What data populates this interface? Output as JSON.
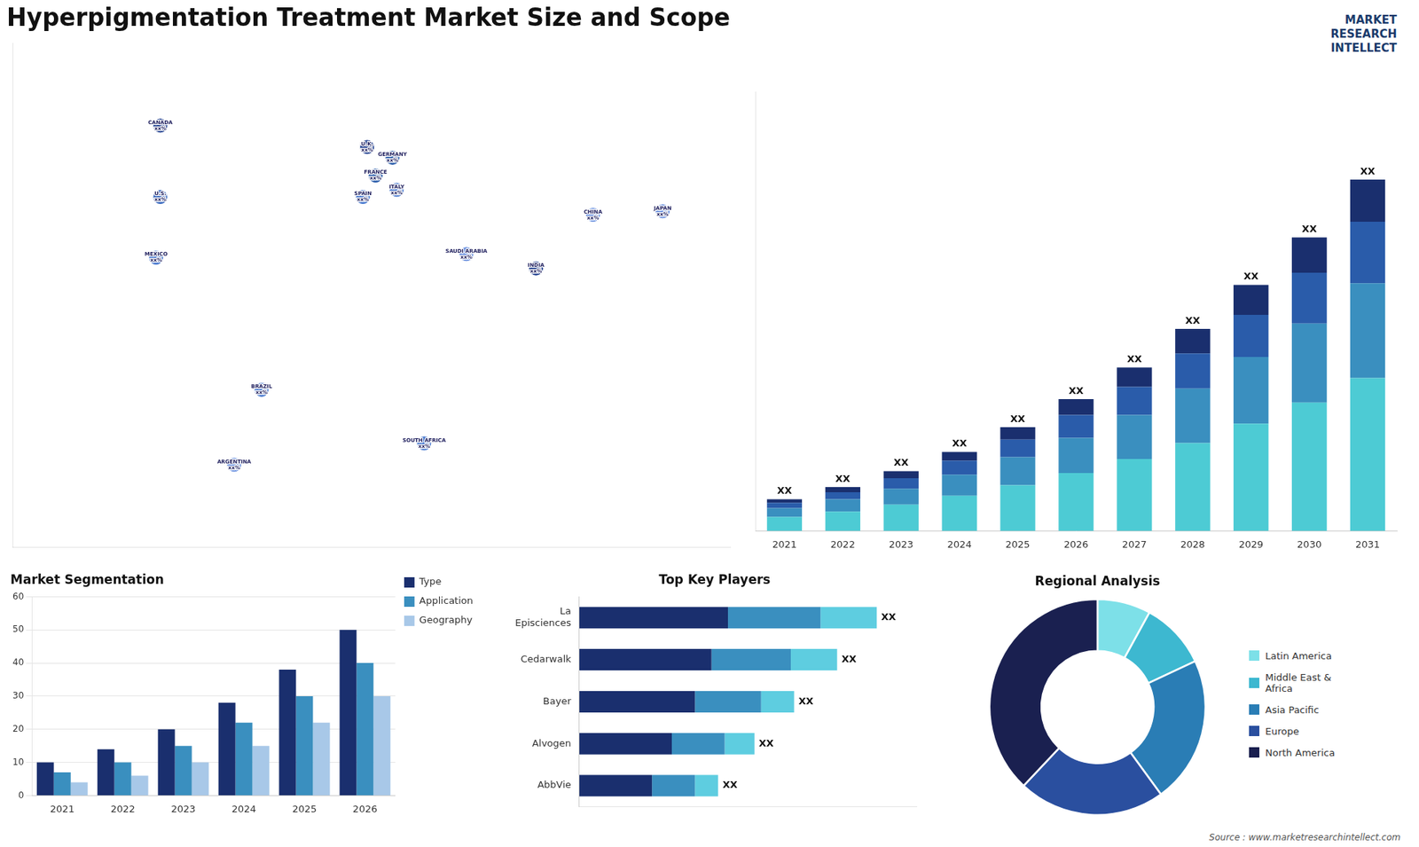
{
  "chart_data": [
    {
      "type": "scatter",
      "title": "Hyperpigmentation Treatment Market Size and Scope",
      "x": [
        -100,
        -100,
        -102,
        -52,
        -65,
        -2,
        2,
        -4,
        10,
        12,
        45,
        25,
        105,
        78,
        138
      ],
      "values": [
        60,
        40,
        23,
        -14,
        -35,
        54,
        46,
        40,
        51,
        42,
        24,
        -29,
        35,
        20,
        36
      ],
      "colors": [
        "#1a3a8c",
        "#3a6abf",
        "#4a7acf",
        "#4a7acf",
        "#6a90df",
        "#1a3a8c",
        "#2a5caa",
        "#4a7acf",
        "#2a5caa",
        "#4a7acf",
        "#6a90df",
        "#4a7acf",
        "#6a90df",
        "#1a3a8c",
        "#6a90df"
      ],
      "value_labels": [
        "CANADA\nxx%",
        "U.S.\nxx%",
        "MEXICO\nxx%",
        "BRAZIL\nxx%",
        "ARGENTINA\nxx%",
        "U.K.\nxx%",
        "FRANCE\nxx%",
        "SPAIN\nxx%",
        "GERMANY\nxx%",
        "ITALY\nxx%",
        "SAUDI ARABIA\nxx%",
        "SOUTH AFRICA\nxx%",
        "CHINA\nxx%",
        "INDIA\nxx%",
        "JAPAN\nxx%"
      ],
      "data_labels": true,
      "xlim": [
        -170,
        170
      ],
      "ylim": [
        -58,
        83
      ],
      "tick_labels": false
    },
    {
      "type": "bar",
      "categories": [
        "2021",
        "2022",
        "2023",
        "2024",
        "2025",
        "2026",
        "2027",
        "2028",
        "2029",
        "2030",
        "2031"
      ],
      "series": [
        {
          "color": "#4dcbd4",
          "values": [
            0.8,
            1.1,
            1.5,
            2.0,
            2.6,
            3.3,
            4.1,
            5.0,
            6.1,
            7.3,
            8.7
          ]
        },
        {
          "color": "#3a8fbf",
          "values": [
            0.5,
            0.7,
            0.9,
            1.2,
            1.6,
            2.0,
            2.5,
            3.1,
            3.8,
            4.5,
            5.4
          ]
        },
        {
          "color": "#2a5caa",
          "values": [
            0.3,
            0.4,
            0.6,
            0.8,
            1.0,
            1.3,
            1.6,
            2.0,
            2.4,
            2.9,
            3.5
          ]
        },
        {
          "color": "#1a2f6e",
          "values": [
            0.2,
            0.3,
            0.4,
            0.5,
            0.7,
            0.9,
            1.1,
            1.4,
            1.7,
            2.0,
            2.4
          ]
        }
      ],
      "stacked": true,
      "ylim": [
        0,
        25
      ],
      "totals": [
        1.8,
        2.5,
        3.4,
        4.5,
        5.9,
        7.5,
        9.3,
        11.5,
        14.0,
        16.7,
        20.0
      ],
      "value_labels": [
        "XX",
        "XX",
        "XX",
        "XX",
        "XX",
        "XX",
        "XX",
        "XX",
        "XX",
        "XX",
        "XX"
      ],
      "data_labels": true,
      "tick_labels": "x",
      "annotations": [
        "MARKET",
        "RESEARCH",
        "INTELLECT"
      ]
    },
    {
      "type": "bar",
      "title": "Market Segmentation",
      "categories": [
        "2021",
        "2022",
        "2023",
        "2024",
        "2025",
        "2026"
      ],
      "series": [
        {
          "name": "Type",
          "color": "#1a2f6e",
          "values": [
            10,
            14,
            20,
            28,
            38,
            50
          ]
        },
        {
          "name": "Application",
          "color": "#3a8fbf",
          "values": [
            7,
            10,
            15,
            22,
            30,
            40
          ]
        },
        {
          "name": "Geography",
          "color": "#a8c8e8",
          "values": [
            4,
            6,
            10,
            15,
            22,
            30
          ]
        }
      ],
      "ylim": [
        0,
        60
      ],
      "yticks": [
        0,
        10,
        20,
        30,
        40,
        50,
        60
      ],
      "grid": true,
      "legend": "right"
    },
    {
      "type": "bar",
      "title": "Top Key Players",
      "orientation": "horizontal",
      "categories": [
        "La\nEpisciences",
        "Cedarwalk",
        "Bayer",
        "Alvogen",
        "AbbVie"
      ],
      "series": [
        {
          "color": "#1a2f6e",
          "values": [
            45,
            40,
            35,
            28,
            22
          ]
        },
        {
          "color": "#3a8fbf",
          "values": [
            28,
            24,
            20,
            16,
            13
          ]
        },
        {
          "color": "#5ecde0",
          "values": [
            17,
            14,
            10,
            9,
            7
          ]
        }
      ],
      "stacked": true,
      "xlim": [
        0,
        102
      ],
      "totals": [
        90,
        78,
        65,
        53,
        42
      ],
      "value_labels": [
        "XX",
        "XX",
        "XX",
        "XX",
        "XX"
      ],
      "data_labels": true,
      "tick_labels": "y"
    },
    {
      "type": "doughnut",
      "title": "Regional Analysis",
      "categories": [
        "Latin America",
        "Middle East &\nAfrica",
        "Asia Pacific",
        "Europe",
        "North America"
      ],
      "values": [
        8,
        10,
        22,
        22,
        38
      ],
      "colors": [
        "#7de0e8",
        "#3db8d0",
        "#2a7db5",
        "#2a4f9f",
        "#1a2050"
      ],
      "legend": "right",
      "annotations": [
        "Source : www.marketresearchintellect.com"
      ]
    }
  ]
}
